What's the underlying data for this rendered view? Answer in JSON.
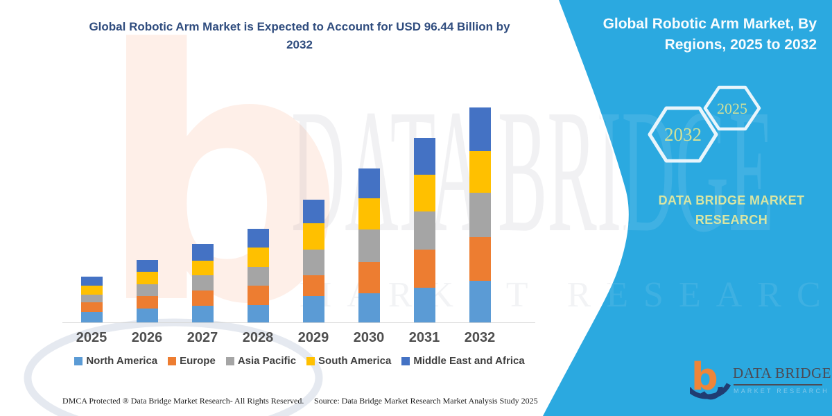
{
  "chart": {
    "title_line1": "Global Robotic Arm Market is Expected to Account for USD 96.44 Billion by",
    "title_line2": "2032"
  },
  "chart_data": {
    "type": "bar",
    "stacked": true,
    "title": "Global Robotic Arm Market is Expected to Account for USD 96.44 Billion by 2032",
    "unit": "USD Billion",
    "categories": [
      "2025",
      "2026",
      "2027",
      "2028",
      "2029",
      "2030",
      "2031",
      "2032"
    ],
    "series": [
      {
        "name": "North America",
        "color": "#5B9BD5",
        "values": [
          4.7,
          6.2,
          7.5,
          7.8,
          11.8,
          13.0,
          15.5,
          18.6
        ]
      },
      {
        "name": "Europe",
        "color": "#ED7D31",
        "values": [
          4.3,
          5.5,
          6.9,
          8.8,
          9.3,
          14.0,
          17.1,
          19.6
        ]
      },
      {
        "name": "Asia Pacific",
        "color": "#A5A5A5",
        "values": [
          3.6,
          5.4,
          6.8,
          8.3,
          11.4,
          14.5,
          17.1,
          19.9
        ]
      },
      {
        "name": "South America",
        "color": "#FFC000",
        "values": [
          3.9,
          5.7,
          6.4,
          8.8,
          11.9,
          14.0,
          16.5,
          18.6
        ]
      },
      {
        "name": "Middle East and Africa",
        "color": "#4472C4",
        "values": [
          3.9,
          5.2,
          7.4,
          8.3,
          10.7,
          13.3,
          16.3,
          19.7
        ]
      }
    ],
    "estimated_totals": [
      20.4,
      28.0,
      35.0,
      42.0,
      55.1,
      68.8,
      82.5,
      96.4
    ],
    "ylim": [
      0,
      100
    ],
    "x_axis_labels_visible": true,
    "y_axis_labels_visible": false,
    "grid": false,
    "legend_position": "bottom"
  },
  "right_panel": {
    "heading_line1": "Global Robotic Arm Market, By",
    "heading_line2": "Regions, 2025 to 2032",
    "hexagon_back_label": "2032",
    "hexagon_front_label": "2025",
    "caption_line1": "DATA BRIDGE MARKET",
    "caption_line2": "RESEARCH",
    "accent_color": "#2BA9E0",
    "caption_color": "#D8E5A3",
    "hexagon_text_color": "#CFE09A"
  },
  "logo": {
    "letter": "b",
    "name_text": "DATA BRIDGE",
    "sub_text": "MARKET RESEARCH",
    "orange": "#EE8539",
    "navy": "#203D72"
  },
  "watermarks": {
    "big_text": "DATA BRIDGE",
    "sub_text": "MARKET RESEARCH",
    "letter": "b"
  },
  "footer": {
    "dmca_text": "DMCA Protected ® Data Bridge Market Research-  All Rights Reserved.",
    "source_text": "Source: Data Bridge Market Research  Market Analysis Study 2025"
  }
}
